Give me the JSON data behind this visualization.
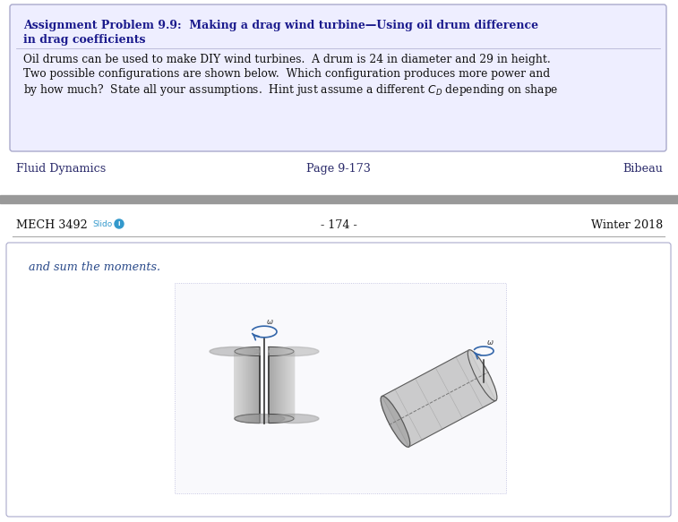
{
  "title_box": {
    "title_bold": "Assignment Problem 9.9:  Making a drag wind turbine—Using oil drum difference",
    "title_bold_line2": "in drag coefficients",
    "body_line1": "Oil drums can be used to make DIY wind turbines.  A drum is 24 in diameter and 29 in height.",
    "body_line2": "Two possible configurations are shown below.  Which configuration produces more power and",
    "body_line3": "by how much?  State all your assumptions.  Hint just assume a different $C_D$ depending on shape",
    "border_color": "#aaaacc",
    "bg_color": "#eeeeff",
    "title_color": "#1a1a8c",
    "body_color": "#111111"
  },
  "footer_top": {
    "left": "Fluid Dynamics",
    "center": "Page 9-173",
    "right": "Bibeau",
    "color": "#2a2a6a"
  },
  "separator_color": "#999999",
  "footer_bottom": {
    "left": "MECH 3492",
    "left_slido": "Slido",
    "center": "- 174 -",
    "right": "Winter 2018",
    "color": "#111111",
    "slido_color": "#3399cc"
  },
  "content_box": {
    "text": "and sum the moments.",
    "text_color": "#2a4a8a",
    "border_color": "#aaaacc",
    "bg_color": "#ffffff"
  },
  "bg_color": "#ffffff",
  "figure_width": 7.57,
  "figure_height": 5.83,
  "dpi": 100
}
